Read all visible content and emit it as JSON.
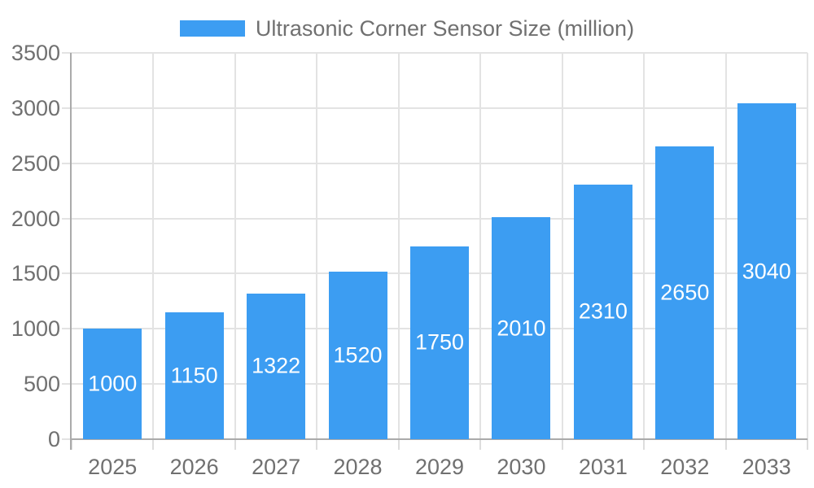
{
  "legend": {
    "label": "Ultrasonic Corner Sensor Size (million)"
  },
  "chart_data": {
    "type": "bar",
    "title": "Ultrasonic Corner Sensor Size (million)",
    "series_name": "Ultrasonic Corner Sensor Size (million)",
    "categories": [
      "2025",
      "2026",
      "2027",
      "2028",
      "2029",
      "2030",
      "2031",
      "2032",
      "2033"
    ],
    "values": [
      1000,
      1150,
      1322,
      1520,
      1750,
      2010,
      2310,
      2650,
      3040
    ],
    "value_labels": [
      "1000",
      "1150",
      "1322",
      "1520",
      "1750",
      "2010",
      "2310",
      "2650",
      "3040"
    ],
    "xlabel": "",
    "ylabel": "",
    "ylim": [
      0,
      3500
    ],
    "ytick_step": 500,
    "ytick_labels": [
      "0",
      "500",
      "1000",
      "1500",
      "2000",
      "2500",
      "3000",
      "3500"
    ],
    "grid": true,
    "legend_position": "top",
    "colors": {
      "bar": "#3c9df2",
      "value_label": "#ffffff",
      "text": "#707070",
      "grid": "#e3e3e3",
      "tick": "#dddddd",
      "axis": "#aaaaaa",
      "background": "#ffffff"
    }
  }
}
